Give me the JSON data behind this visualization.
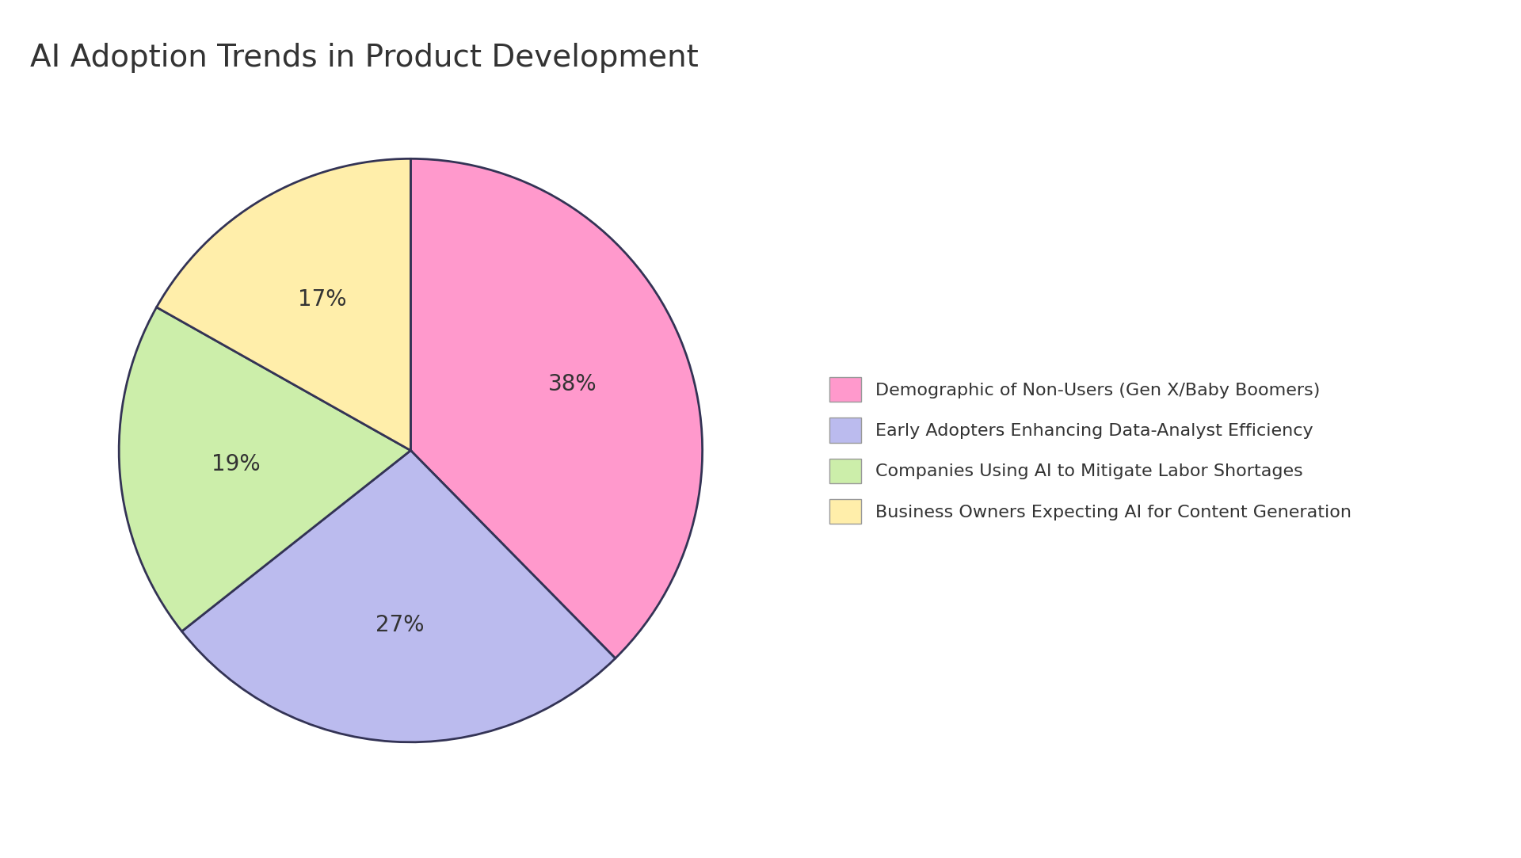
{
  "title": "AI Adoption Trends in Product Development",
  "slices": [
    38,
    27,
    19,
    17
  ],
  "labels": [
    "Demographic of Non-Users (Gen X/Baby Boomers)",
    "Early Adopters Enhancing Data-Analyst Efficiency",
    "Companies Using AI to Mitigate Labor Shortages",
    "Business Owners Expecting AI for Content Generation"
  ],
  "colors": [
    "#FF99CC",
    "#BBBBEE",
    "#CCEEAA",
    "#FFEEAA"
  ],
  "edge_color": "#333355",
  "edge_width": 2.0,
  "pct_labels": [
    "38%",
    "27%",
    "19%",
    "17%"
  ],
  "title_fontsize": 28,
  "pct_fontsize": 20,
  "legend_fontsize": 16,
  "background_color": "#FFFFFF",
  "start_angle": 90
}
